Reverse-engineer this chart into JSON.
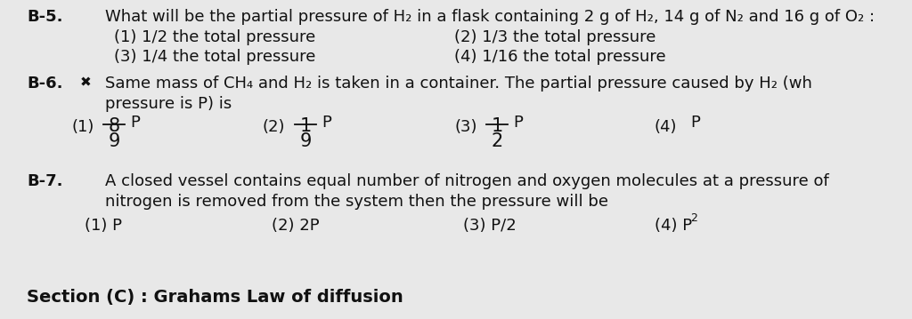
{
  "background_color": "#e8e8e8",
  "text_color": "#111111",
  "fontsize": 13.0,
  "bold_fontsize": 13.0,
  "section_fontsize": 14.0,
  "b5_label": "B-5.",
  "b5_q": "What will be the partial pressure of H₂ in a flask containing 2 g of H₂, 14 g of N₂ and 16 g of O₂ :",
  "b5_opt1": "(1) 1/2 the total pressure",
  "b5_opt2": "(2) 1/3 the total pressure",
  "b5_opt3": "(3) 1/4 the total pressure",
  "b5_opt4": "(4) 1/16 the total pressure",
  "b6_label": "B-6.",
  "b6_cross": "✖",
  "b6_q1": "Same mass of CH₄ and H₂ is taken in a container. The partial pressure caused by H₂ (wh",
  "b6_q2": "pressure is P) is",
  "b6_opt4": "(4) P",
  "b7_label": "B-7.",
  "b7_q1": "A closed vessel contains equal number of nitrogen and oxygen molecules at a pressure of",
  "b7_q2": "nitrogen is removed from the system then the pressure will be",
  "b7_opt1": "(1) P",
  "b7_opt2": "(2) 2P",
  "b7_opt3": "(3) P/2",
  "b7_opt4": "(4) P",
  "section": "Section (C) : Grahams Law of diffusion"
}
